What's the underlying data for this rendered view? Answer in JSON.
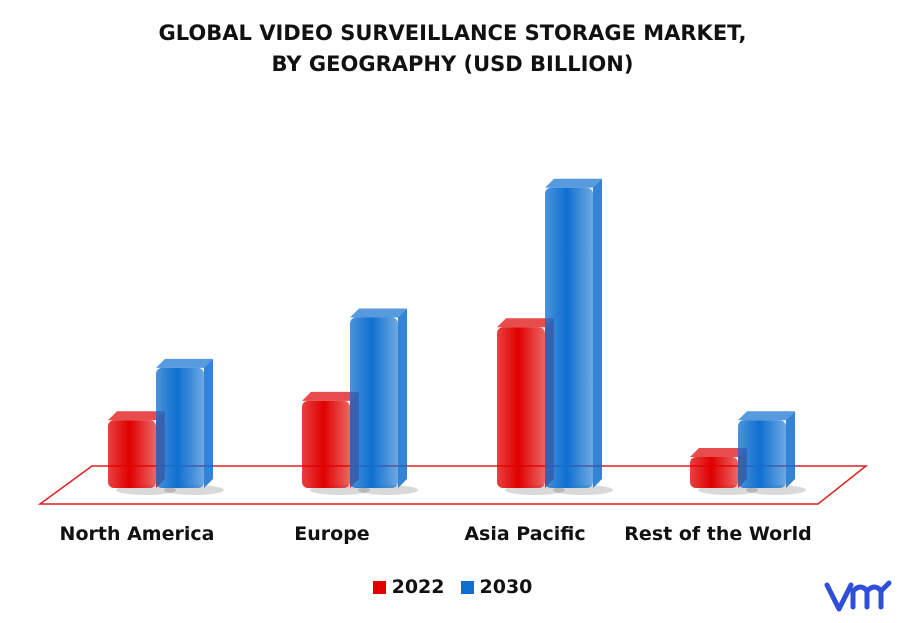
{
  "title_line1": "GLOBAL VIDEO SURVEILLANCE STORAGE MARKET,",
  "title_line2": "BY GEOGRAPHY (USD BILLION)",
  "colors": {
    "series_2022": "#e00000",
    "series_2030": "#0f6fd0",
    "floor": "#e02020"
  },
  "logo": {
    "icon": "vmr-logo-icon",
    "color": "#2f4fd8"
  },
  "chart_data": {
    "type": "bar",
    "categories": [
      "North America",
      "Europe",
      "Asia Pacific",
      "Rest of the World"
    ],
    "series": [
      {
        "name": "2022",
        "values": [
          3.5,
          4.5,
          8.3,
          1.6
        ]
      },
      {
        "name": "2030",
        "values": [
          6.2,
          8.8,
          15.5,
          3.5
        ]
      }
    ],
    "ylim": [
      0,
      16
    ],
    "legend_position": "bottom",
    "grid": false
  }
}
